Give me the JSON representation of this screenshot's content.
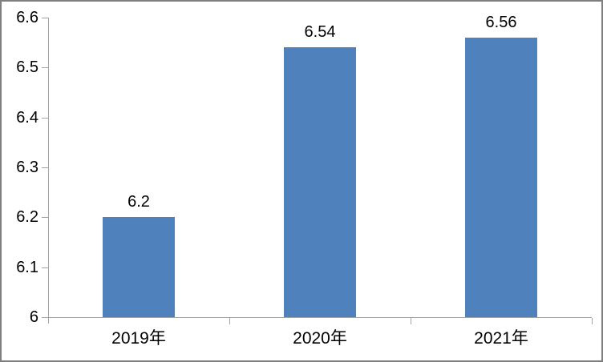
{
  "chart_data": {
    "type": "bar",
    "title": "",
    "xlabel": "",
    "ylabel": "",
    "categories": [
      "2019年",
      "2020年",
      "2021年"
    ],
    "values": [
      6.2,
      6.54,
      6.56
    ],
    "data_labels": [
      "6.2",
      "6.54",
      "6.56"
    ],
    "ylim": [
      6,
      6.6
    ],
    "y_tick_values": [
      6,
      6.1,
      6.2,
      6.3,
      6.4,
      6.5,
      6.6
    ],
    "y_tick_labels": [
      "6",
      "6.1",
      "6.2",
      "6.3",
      "6.4",
      "6.5",
      "6.6"
    ],
    "grid": false,
    "legend": "none",
    "colors": {
      "bar_fill": "#4f81bd",
      "axis_line": "#a3a3a3",
      "text": "#000000",
      "frame_border": "#7f7f7f",
      "plot_background": "#ffffff"
    }
  }
}
